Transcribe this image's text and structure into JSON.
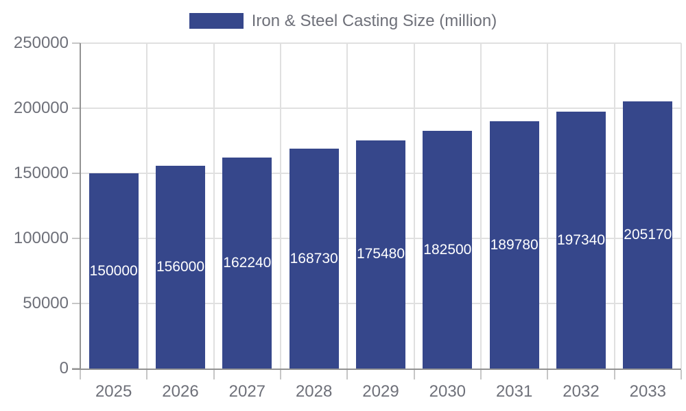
{
  "chart_data": {
    "type": "bar",
    "title": "",
    "legend": {
      "label": "Iron & Steel Casting Size (million)",
      "position": "top-center"
    },
    "categories": [
      "2025",
      "2026",
      "2027",
      "2028",
      "2029",
      "2030",
      "2031",
      "2032",
      "2033"
    ],
    "series": [
      {
        "name": "Iron & Steel Casting Size (million)",
        "values": [
          150000,
          156000,
          162240,
          168730,
          175480,
          182500,
          189780,
          197340,
          205170
        ]
      }
    ],
    "value_labels": [
      "150000",
      "156000",
      "162240",
      "168730",
      "175480",
      "182500",
      "189780",
      "197340",
      "205170"
    ],
    "xlabel": "",
    "ylabel": "",
    "ylim": [
      0,
      250000
    ],
    "yticks": [
      0,
      50000,
      100000,
      150000,
      200000,
      250000
    ],
    "ytick_labels": [
      "0",
      "50000",
      "100000",
      "150000",
      "200000",
      "250000"
    ],
    "grid": "on",
    "colors": {
      "bar": "#36478B",
      "bar_value_text": "#ffffff",
      "axis_text": "#6E7079",
      "grid_line": "#E0E0E0",
      "axis_line": "#929292",
      "tick_mark": "#C6C6C6",
      "background": "#ffffff"
    }
  }
}
